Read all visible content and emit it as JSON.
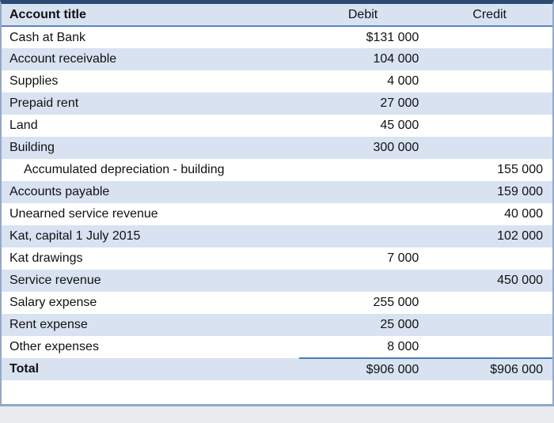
{
  "table": {
    "columns": [
      "Account title",
      "Debit",
      "Credit"
    ],
    "rows": [
      {
        "account": "Cash at Bank",
        "debit": "$131 000",
        "credit": "",
        "indent": false
      },
      {
        "account": "Account receivable",
        "debit": "104 000",
        "credit": "",
        "indent": false
      },
      {
        "account": "Supplies",
        "debit": "4 000",
        "credit": "",
        "indent": false
      },
      {
        "account": "Prepaid rent",
        "debit": "27 000",
        "credit": "",
        "indent": false
      },
      {
        "account": "Land",
        "debit": "45 000",
        "credit": "",
        "indent": false
      },
      {
        "account": "Building",
        "debit": "300 000",
        "credit": "",
        "indent": false
      },
      {
        "account": "Accumulated depreciation - building",
        "debit": "",
        "credit": "155 000",
        "indent": true
      },
      {
        "account": "Accounts payable",
        "debit": "",
        "credit": "159 000",
        "indent": false
      },
      {
        "account": "Unearned service revenue",
        "debit": "",
        "credit": "40 000",
        "indent": false
      },
      {
        "account": "Kat, capital 1 July 2015",
        "debit": "",
        "credit": "102 000",
        "indent": false
      },
      {
        "account": "Kat drawings",
        "debit": "7 000",
        "credit": "",
        "indent": false
      },
      {
        "account": "Service revenue",
        "debit": "",
        "credit": "450 000",
        "indent": false
      },
      {
        "account": "Salary expense",
        "debit": "255 000",
        "credit": "",
        "indent": false
      },
      {
        "account": "Rent expense",
        "debit": "25 000",
        "credit": "",
        "indent": false
      },
      {
        "account": "Other expenses",
        "debit": "8 000",
        "credit": "",
        "indent": false
      }
    ],
    "total": {
      "label": "Total",
      "debit": "$906 000",
      "credit": "$906 000"
    }
  },
  "colors": {
    "top_bar": "#2b4a72",
    "header_bg": "#d8e2f1",
    "row_alt_bg": "#d8e2f1",
    "header_rule": "#5b84ba",
    "total_rule": "#4f7ab3",
    "outer_border": "#93a9c7",
    "page_bg": "#e9ebee",
    "text": "#111111"
  }
}
